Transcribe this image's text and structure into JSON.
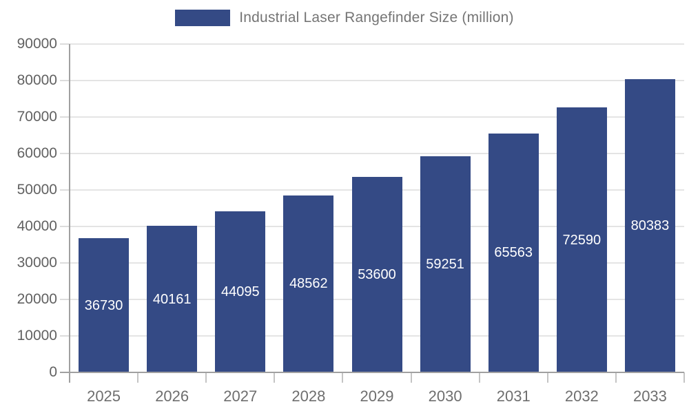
{
  "legend": {
    "label": "Industrial Laser Rangefinder Size (million)"
  },
  "chart_data": {
    "type": "bar",
    "title": "Industrial Laser Rangefinder Size (million)",
    "series_name": "Industrial Laser Rangefinder Size (million)",
    "categories": [
      "2025",
      "2026",
      "2027",
      "2028",
      "2029",
      "2030",
      "2031",
      "2032",
      "2033"
    ],
    "values": [
      36730,
      40161,
      44095,
      48562,
      53600,
      59251,
      65563,
      72590,
      80383
    ],
    "xlabel": "",
    "ylabel": "",
    "ylim": [
      0,
      90000
    ],
    "ytick_step": 10000,
    "grid": true,
    "legend_position": "top-center",
    "bar_labels_visible": true,
    "bar_label_position": "inside-center",
    "colors": {
      "bar": "#344a85",
      "bar_label": "#ffffff",
      "axis_line": "#a0a0a0",
      "gridline": "#e4e4e4",
      "tick_label": "#616161",
      "legend_text": "#757575",
      "background": "#ffffff"
    }
  }
}
